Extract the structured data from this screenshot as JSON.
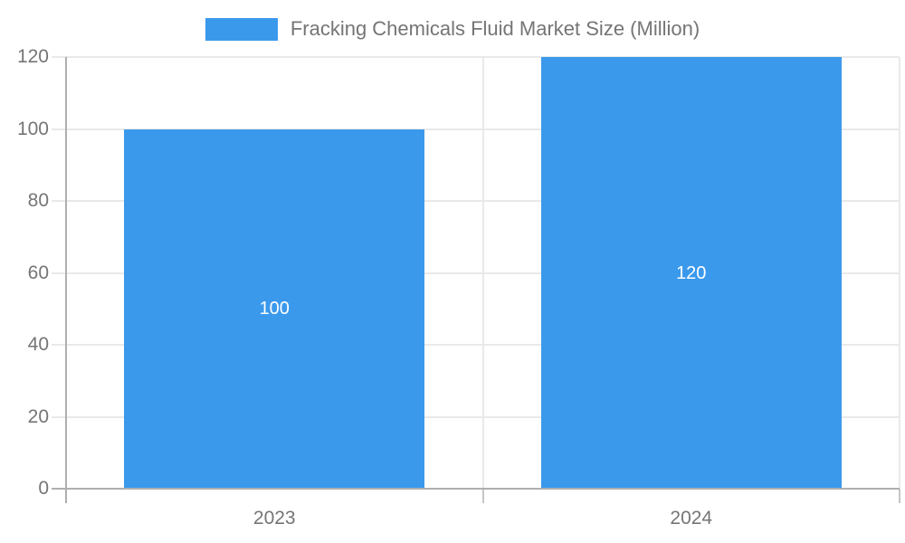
{
  "chart_data": {
    "type": "bar",
    "title": "Fracking Chemicals Fluid Market Size (Million)",
    "legend": {
      "label": "Fracking Chemicals Fluid Market Size (Million)",
      "position": "top"
    },
    "categories": [
      "2023",
      "2024"
    ],
    "series": [
      {
        "name": "Fracking Chemicals Fluid Market Size (Million)",
        "values": [
          100,
          120
        ]
      }
    ],
    "bar_labels": [
      "100",
      "120"
    ],
    "xlabel": "",
    "ylabel": "",
    "ylim": [
      0,
      120
    ],
    "yticks": [
      0,
      20,
      40,
      60,
      80,
      100,
      120
    ],
    "grid": true,
    "colors": {
      "bar": "#3B99EC",
      "bar_label_text": "#FFFFFF",
      "axis_line": "#AFAFAF",
      "gridline": "#E9E9E9",
      "bottom_tick": "#C6C6C6",
      "tick_text": "#757575"
    }
  }
}
